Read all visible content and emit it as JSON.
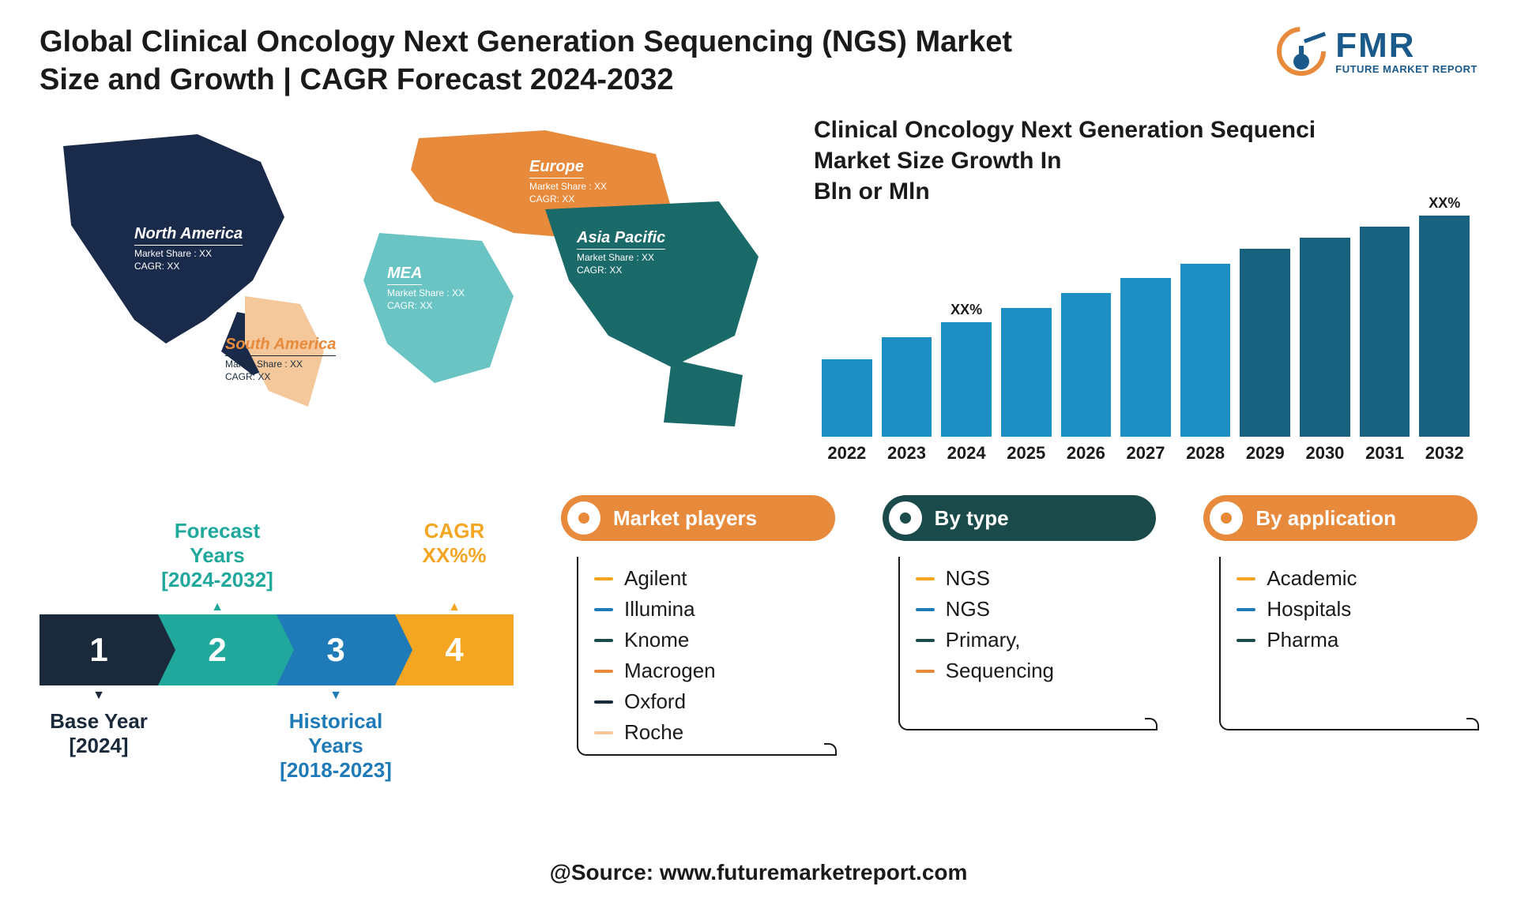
{
  "title": "Global Clinical Oncology Next Generation Sequencing (NGS) Market Size and Growth | CAGR Forecast 2024-2032",
  "logo": {
    "fmr": "FMR",
    "sub": "FUTURE MARKET REPORT"
  },
  "map": {
    "regions": [
      {
        "name": "North America",
        "color": "#1a2a4a",
        "share": "Market Share : XX",
        "cagr": "CAGR: XX"
      },
      {
        "name": "South America",
        "color": "#f4c89a",
        "share": "Market Share : XX",
        "cagr": "CAGR: XX"
      },
      {
        "name": "Europe",
        "color": "#e88a3c",
        "share": "Market Share : XX",
        "cagr": "CAGR: XX"
      },
      {
        "name": "MEA",
        "color": "#6bc4c4",
        "share": "Market Share : XX",
        "cagr": "CAGR: XX"
      },
      {
        "name": "Asia Pacific",
        "color": "#1a6a6a",
        "share": "Market Share : XX",
        "cagr": "CAGR: XX"
      }
    ]
  },
  "chart": {
    "title_l1": "Clinical Oncology Next Generation Sequenci",
    "title_l2": "Market Size Growth In",
    "title_l3": "Bln or Mln",
    "type": "bar",
    "years": [
      "2022",
      "2023",
      "2024",
      "2025",
      "2026",
      "2027",
      "2028",
      "2029",
      "2030",
      "2031",
      "2032"
    ],
    "values": [
      105,
      135,
      155,
      175,
      195,
      215,
      235,
      255,
      270,
      285,
      300
    ],
    "label_2024": "XX%",
    "label_2032": "XX%",
    "bar_color": "#1c8fc4",
    "bar_color_dark": "#18627f",
    "background": "#ffffff"
  },
  "timeline": {
    "top_labels": [
      {
        "l1": "Forecast Years",
        "l2": "[2024-2032]",
        "color": "#1fa89b"
      },
      {
        "l1": "CAGR",
        "l2": "XX%%",
        "color": "#f4a623"
      }
    ],
    "segments": [
      "1",
      "2",
      "3",
      "4"
    ],
    "seg_colors": [
      "#1a2a3a",
      "#1fa89b",
      "#1e7bb8",
      "#f4a623"
    ],
    "bot_labels": [
      {
        "l1": "Base Year",
        "l2": "[2024]",
        "color": "#1a2a3a"
      },
      {
        "l1": "Historical Years",
        "l2": "[2018-2023]",
        "color": "#1e7bb8"
      }
    ]
  },
  "pills": [
    {
      "title": "Market players",
      "style": "orange",
      "items": [
        {
          "t": "Agilent",
          "c": "#f4a623"
        },
        {
          "t": "Illumina",
          "c": "#1e7bb8"
        },
        {
          "t": "Knome",
          "c": "#1a4a4a"
        },
        {
          "t": "Macrogen",
          "c": "#e88a3c"
        },
        {
          "t": "Oxford",
          "c": "#1a2a3a"
        },
        {
          "t": "Roche",
          "c": "#f4c89a"
        }
      ]
    },
    {
      "title": "By type",
      "style": "dark",
      "items": [
        {
          "t": "NGS",
          "c": "#f4a623"
        },
        {
          "t": "NGS",
          "c": "#1e7bb8"
        },
        {
          "t": "Primary,",
          "c": "#1a4a4a"
        },
        {
          "t": "Sequencing",
          "c": "#e88a3c"
        }
      ]
    },
    {
      "title": "By application",
      "style": "orange",
      "items": [
        {
          "t": "Academic",
          "c": "#f4a623"
        },
        {
          "t": "Hospitals",
          "c": "#1e7bb8"
        },
        {
          "t": "Pharma",
          "c": "#1a4a4a"
        }
      ]
    }
  ],
  "source": "@Source: www.futuremarketreport.com"
}
